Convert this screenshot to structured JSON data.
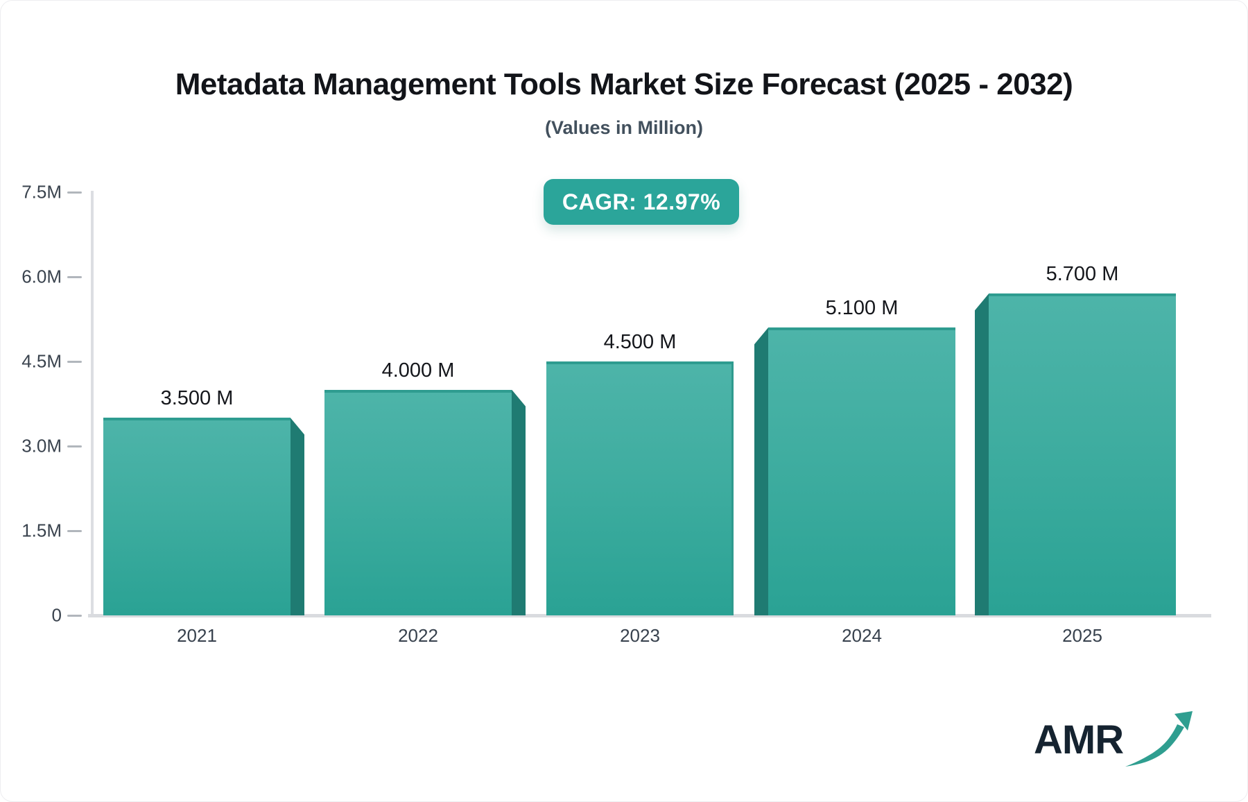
{
  "header": {
    "title": "Metadata Management Tools Market Size Forecast (2025 - 2032)",
    "subtitle": "(Values in Million)"
  },
  "badge": {
    "label": "CAGR: 12.97%"
  },
  "chart_data": {
    "type": "bar",
    "title": "Metadata Management Tools Market Size Forecast (2025 - 2032)",
    "subtitle": "(Values in Million)",
    "categories": [
      "2021",
      "2022",
      "2023",
      "2024",
      "2025"
    ],
    "values": [
      3.5,
      4.0,
      4.5,
      5.1,
      5.7
    ],
    "value_labels": [
      "3.500 M",
      "4.000 M",
      "4.500 M",
      "5.100 M",
      "5.700 M"
    ],
    "cagr": "12.97%",
    "xlabel": "",
    "ylabel": "",
    "ylim": [
      0,
      7.5
    ],
    "ytick_labels": [
      "7.5M",
      "6.0M",
      "4.5M",
      "3.0M",
      "1.5M",
      "0"
    ],
    "ytick_values": [
      7.5,
      6.0,
      4.5,
      3.0,
      1.5,
      0
    ],
    "grid": false,
    "legend": "none",
    "bevel_sides": [
      "right",
      "right",
      "none",
      "left",
      "left"
    ],
    "colors": {
      "bar_top": "#4db4a9",
      "bar_bottom": "#2aa294",
      "bar_edge": "#2e9c90",
      "bar_bevel": "#1f7b72",
      "badge_bg": "#2ba59a",
      "badge_text": "#ffffff",
      "title_text": "#121419",
      "subtitle_text": "#42505d",
      "axis_text": "#3a434e",
      "axis_line": "#d9dbdf",
      "logo_text": "#152330",
      "logo_arrow": "#2f9e90"
    }
  },
  "logo": {
    "text": "AMR",
    "arrow_icon": "growth-arrow-icon"
  }
}
